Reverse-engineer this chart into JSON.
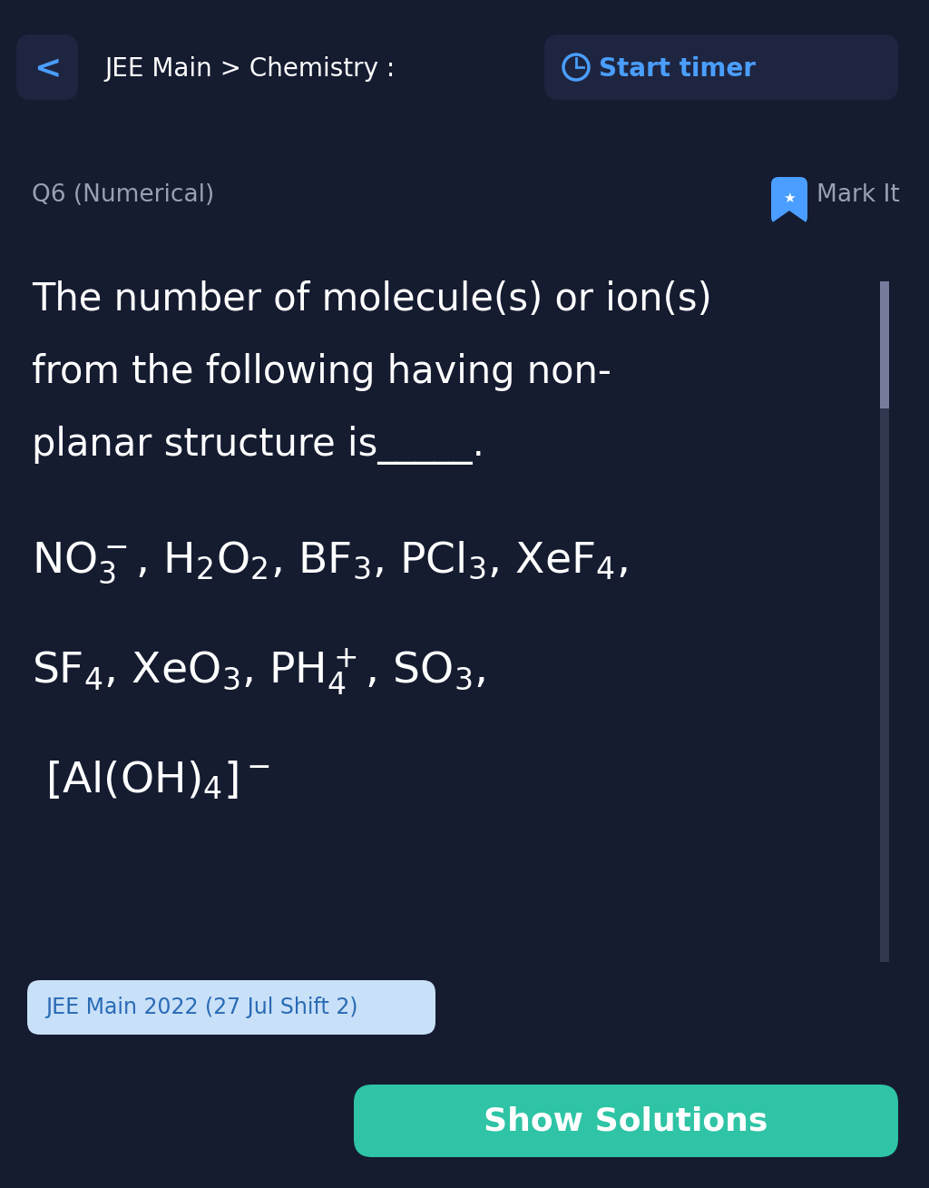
{
  "bg_color": "#151c30",
  "header_text": "JEE Main > Chemistry :",
  "timer_text": "  Start timer",
  "q_label": "Q6 (Numerical)",
  "mark_it": "Mark It",
  "question_lines": [
    "The number of molecule(s) or ion(s)",
    "from the following having non-",
    "planar structure is_____."
  ],
  "tag_text": "JEE Main 2022 (27 Jul Shift 2)",
  "btn_text": "Show Solutions",
  "text_color": "#ffffff",
  "gray_text_color": "#9aa0b4",
  "blue_color": "#4a9eff",
  "tag_bg": "#c8e0f8",
  "tag_fg": "#2a6bb5",
  "header_btn_bg": "#1e2540",
  "btn_bg": "#2ec4a5",
  "scroll_color": "#5a6080",
  "scroll_thumb": "#8890b0"
}
